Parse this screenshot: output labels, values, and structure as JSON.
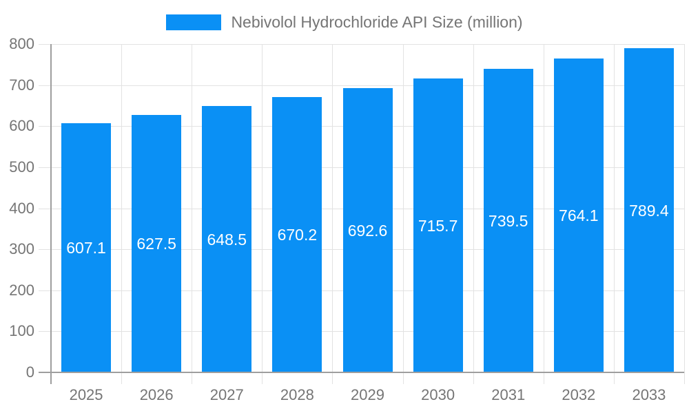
{
  "legend": {
    "label": "Nebivolol Hydrochloride API Size (million)"
  },
  "chart_data": {
    "type": "bar",
    "title": "Nebivolol Hydrochloride API Size (million)",
    "categories": [
      "2025",
      "2026",
      "2027",
      "2028",
      "2029",
      "2030",
      "2031",
      "2032",
      "2033"
    ],
    "values": [
      607.1,
      627.5,
      648.5,
      670.2,
      692.6,
      715.7,
      739.5,
      764.1,
      789.4
    ],
    "value_labels": [
      "607.1",
      "627.5",
      "648.5",
      "670.2",
      "692.6",
      "715.7",
      "739.5",
      "764.1",
      "789.4"
    ],
    "ytick_labels": [
      "0",
      "100",
      "200",
      "300",
      "400",
      "500",
      "600",
      "700",
      "800"
    ],
    "ylim": [
      0,
      800
    ],
    "ytick_step": 100,
    "grid": true,
    "legend_position": "top",
    "xlabel": "",
    "ylabel": "",
    "colors": {
      "bar": "#0a90f5",
      "bar_value_text": "#ffffff",
      "axis_line": "#9e9e9e",
      "gridline": "#e2e2e2",
      "tick_text": "#757575",
      "legend_text": "#757575",
      "background": "#ffffff"
    }
  }
}
